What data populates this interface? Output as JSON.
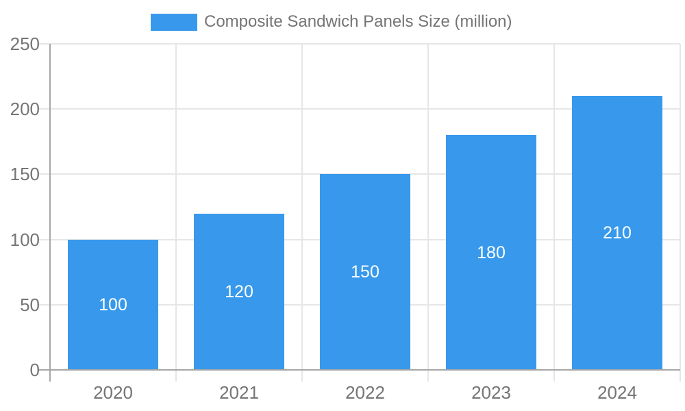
{
  "chart_data": {
    "type": "bar",
    "title": "Composite Sandwich Panels Size (million)",
    "categories": [
      "2020",
      "2021",
      "2022",
      "2023",
      "2024"
    ],
    "series": [
      {
        "name": "Composite Sandwich Panels Size (million)",
        "values": [
          100,
          120,
          150,
          180,
          210
        ]
      }
    ],
    "bar_value_labels": [
      "100",
      "120",
      "150",
      "180",
      "210"
    ],
    "xlabel": "",
    "ylabel": "",
    "ylim": [
      0,
      250
    ],
    "yticks": [
      0,
      50,
      100,
      150,
      200,
      250
    ],
    "grid": "on",
    "legend_position": "top-center",
    "colors": {
      "bar": "#3899EC",
      "bar_label": "#FFFFFF",
      "axis_line": "#A6A6A6",
      "grid_line": "#E6E6E6",
      "tick_label": "#757575",
      "legend_label": "#757575",
      "background": "#FFFFFF"
    }
  }
}
